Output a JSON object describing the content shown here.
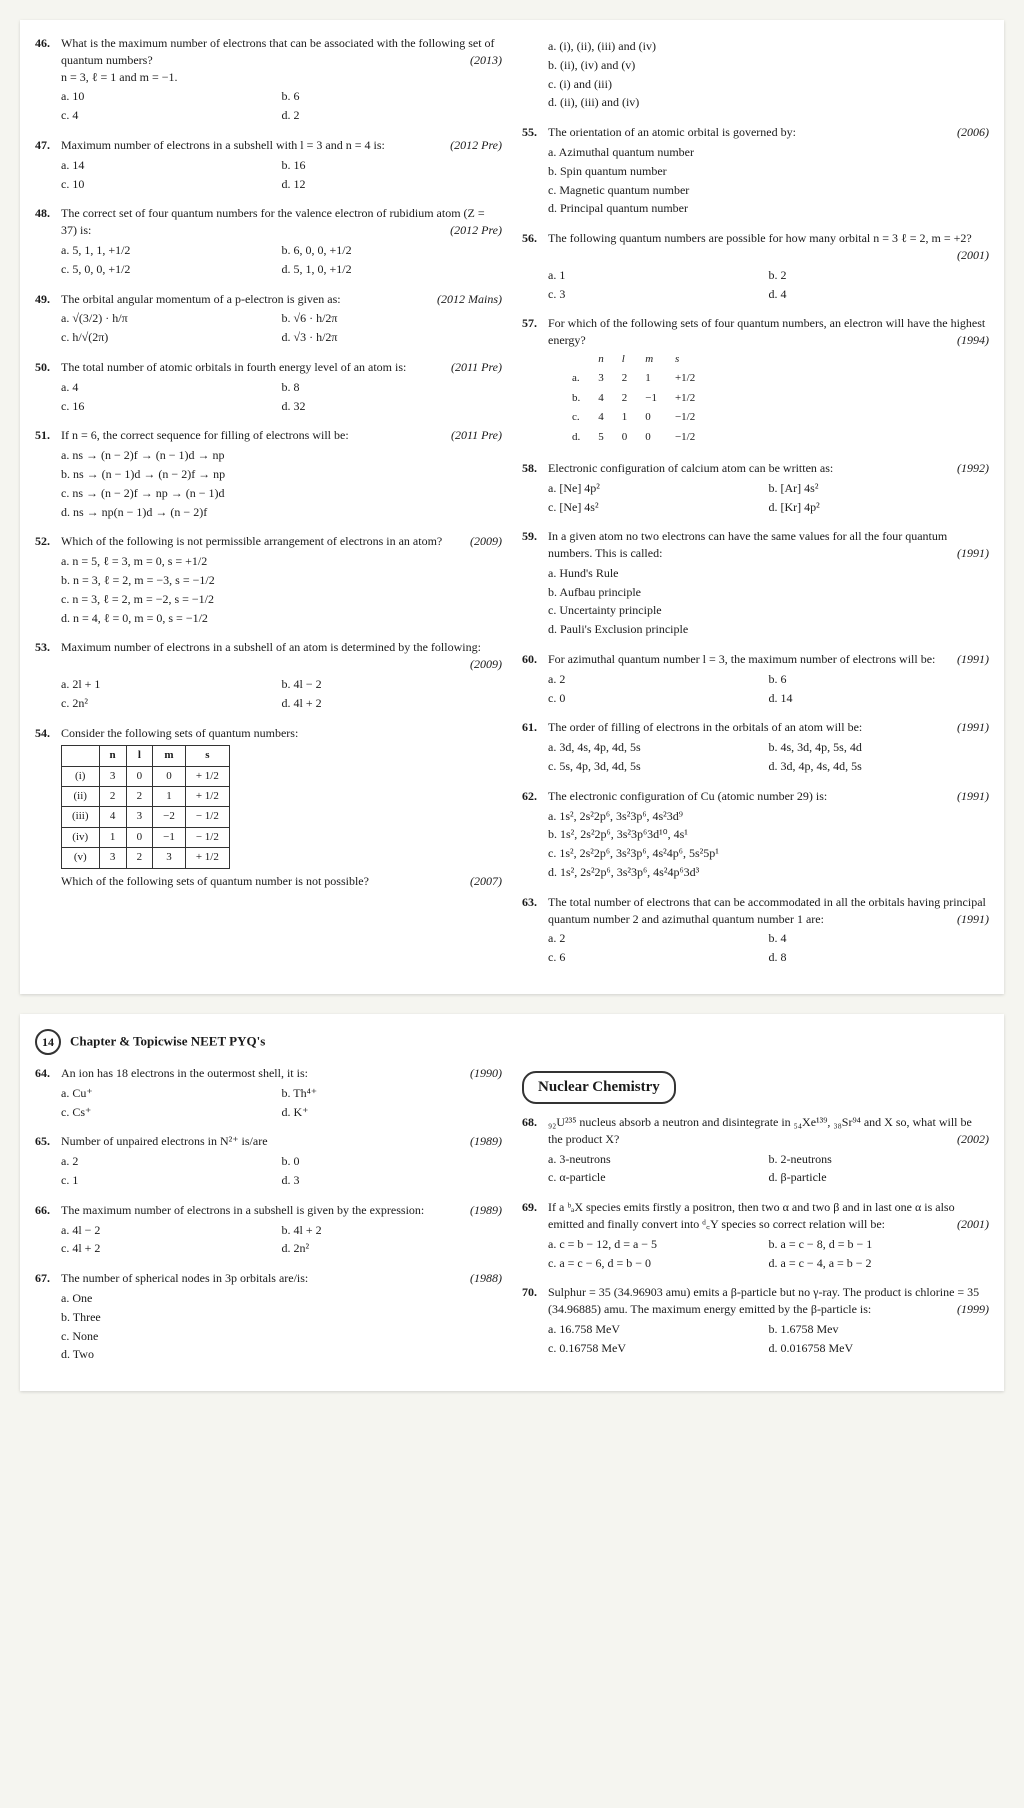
{
  "page1": {
    "left": [
      {
        "num": "46.",
        "text": "What is the maximum number of electrons that can be associated with the following set of quantum numbers?",
        "sub": "n = 3, ℓ = 1 and m = −1.",
        "year": "(2013)",
        "opts": [
          "a. 10",
          "b. 6",
          "c. 4",
          "d. 2"
        ],
        "layout": "row"
      },
      {
        "num": "47.",
        "text": "Maximum number of electrons in a subshell with l = 3 and n = 4 is:",
        "year": "(2012 Pre)",
        "opts": [
          "a. 14",
          "b. 16",
          "c. 10",
          "d. 12"
        ],
        "layout": "row"
      },
      {
        "num": "48.",
        "text": "The correct set of four quantum numbers for the valence electron of rubidium atom (Z = 37) is:",
        "year": "(2012 Pre)",
        "opts": [
          "a. 5, 1, 1, +1/2",
          "b. 6, 0, 0, +1/2",
          "c. 5, 0, 0, +1/2",
          "d. 5, 1, 0, +1/2"
        ],
        "layout": "row"
      },
      {
        "num": "49.",
        "text": "The orbital angular momentum of a p-electron is given as:",
        "year": "(2012 Mains)",
        "opts": [
          "a. √(3/2) · h/π",
          "b. √6 · h/2π",
          "c. h/√(2π)",
          "d. √3 · h/2π"
        ],
        "layout": "row"
      },
      {
        "num": "50.",
        "text": "The total number of atomic orbitals in fourth energy level of an atom is:",
        "year": "(2011 Pre)",
        "opts": [
          "a. 4",
          "b. 8",
          "c. 16",
          "d. 32"
        ],
        "layout": "row"
      },
      {
        "num": "51.",
        "text": "If n = 6, the correct sequence for filling of electrons will be:",
        "year": "(2011 Pre)",
        "opts": [
          "a. ns → (n − 2)f → (n − 1)d → np",
          "b. ns → (n − 1)d → (n − 2)f → np",
          "c. ns → (n − 2)f → np → (n − 1)d",
          "d. ns → np(n − 1)d → (n − 2)f"
        ],
        "layout": "col"
      },
      {
        "num": "52.",
        "text": "Which of the following is not permissible arrangement of electrons in an atom?",
        "year": "(2009)",
        "opts": [
          "a. n = 5, ℓ = 3, m = 0, s = +1/2",
          "b. n = 3, ℓ = 2, m = −3, s = −1/2",
          "c. n = 3, ℓ = 2, m = −2, s = −1/2",
          "d. n = 4, ℓ = 0, m = 0, s = −1/2"
        ],
        "layout": "col"
      },
      {
        "num": "53.",
        "text": "Maximum number of electrons in a subshell of an atom is determined by the following:",
        "year": "(2009)",
        "opts": [
          "a. 2l + 1",
          "b. 4l − 2",
          "c. 2n²",
          "d. 4l + 2"
        ],
        "layout": "row"
      }
    ],
    "q54": {
      "num": "54.",
      "text": "Consider the following sets of quantum numbers:",
      "headers": [
        "",
        "n",
        "l",
        "m",
        "s"
      ],
      "rows": [
        [
          "(i)",
          "3",
          "0",
          "0",
          "+ 1/2"
        ],
        [
          "(ii)",
          "2",
          "2",
          "1",
          "+ 1/2"
        ],
        [
          "(iii)",
          "4",
          "3",
          "−2",
          "− 1/2"
        ],
        [
          "(iv)",
          "1",
          "0",
          "−1",
          "− 1/2"
        ],
        [
          "(v)",
          "3",
          "2",
          "3",
          "+ 1/2"
        ]
      ],
      "trail": "Which of the following sets of quantum number is not possible?",
      "year": "(2007)"
    },
    "right": [
      {
        "num": "",
        "text": "",
        "opts": [
          "a. (i), (ii), (iii) and (iv)",
          "b. (ii), (iv) and (v)",
          "c. (i) and (iii)",
          "d. (ii), (iii) and (iv)"
        ],
        "layout": "col"
      },
      {
        "num": "55.",
        "text": "The orientation of an atomic orbital is governed by:",
        "year": "(2006)",
        "opts": [
          "a. Azimuthal quantum number",
          "b. Spin quantum number",
          "c. Magnetic quantum number",
          "d. Principal quantum number"
        ],
        "layout": "col"
      },
      {
        "num": "56.",
        "text": "The following quantum numbers are possible for how many orbital n = 3 ℓ = 2, m = +2?",
        "year": "(2001)",
        "opts": [
          "a. 1",
          "b. 2",
          "c. 3",
          "d. 4"
        ],
        "layout": "row"
      }
    ],
    "q57": {
      "num": "57.",
      "text": "For which of the following sets of four quantum numbers, an electron will have the highest energy?",
      "year": "(1994)",
      "headers": [
        "",
        "n",
        "l",
        "m",
        "s"
      ],
      "rows": [
        [
          "a.",
          "3",
          "2",
          "1",
          "+1/2"
        ],
        [
          "b.",
          "4",
          "2",
          "−1",
          "+1/2"
        ],
        [
          "c.",
          "4",
          "1",
          "0",
          "−1/2"
        ],
        [
          "d.",
          "5",
          "0",
          "0",
          "−1/2"
        ]
      ]
    },
    "right2": [
      {
        "num": "58.",
        "text": "Electronic configuration of calcium atom can be written as:",
        "year": "(1992)",
        "opts": [
          "a. [Ne] 4p²",
          "b. [Ar] 4s²",
          "c. [Ne] 4s²",
          "d. [Kr] 4p²"
        ],
        "layout": "row"
      },
      {
        "num": "59.",
        "text": "In a given atom no two electrons can have the same values for all the four quantum numbers. This is called:",
        "year": "(1991)",
        "opts": [
          "a. Hund's Rule",
          "b. Aufbau principle",
          "c. Uncertainty principle",
          "d. Pauli's Exclusion principle"
        ],
        "layout": "col"
      },
      {
        "num": "60.",
        "text": "For azimuthal quantum number l = 3, the maximum number of electrons will be:",
        "year": "(1991)",
        "opts": [
          "a. 2",
          "b. 6",
          "c. 0",
          "d. 14"
        ],
        "layout": "row"
      },
      {
        "num": "61.",
        "text": "The order of filling of electrons in the orbitals of an atom will be:",
        "year": "(1991)",
        "opts": [
          "a. 3d, 4s, 4p, 4d, 5s",
          "b. 4s, 3d, 4p, 5s, 4d",
          "c. 5s, 4p, 3d, 4d, 5s",
          "d. 3d, 4p, 4s, 4d, 5s"
        ],
        "layout": "row"
      },
      {
        "num": "62.",
        "text": "The electronic configuration of Cu (atomic number 29) is:",
        "year": "(1991)",
        "opts": [
          "a. 1s², 2s²2p⁶, 3s²3p⁶, 4s²3d⁹",
          "b. 1s², 2s²2p⁶, 3s²3p⁶3d¹⁰, 4s¹",
          "c. 1s², 2s²2p⁶, 3s²3p⁶, 4s²4p⁶, 5s²5p¹",
          "d. 1s², 2s²2p⁶, 3s²3p⁶, 4s²4p⁶3d³"
        ],
        "layout": "col"
      },
      {
        "num": "63.",
        "text": "The total number of electrons that can be accommodated in all the orbitals having principal quantum number 2 and azimuthal quantum number 1 are:",
        "year": "(1991)",
        "opts": [
          "a. 2",
          "b. 4",
          "c. 6",
          "d. 8"
        ],
        "layout": "row"
      }
    ]
  },
  "page2": {
    "badge": "14",
    "chapter": "Chapter & Topicwise NEET PYQ's",
    "left": [
      {
        "num": "64.",
        "text": "An ion has 18 electrons in the outermost shell, it is:",
        "year": "(1990)",
        "opts": [
          "a. Cu⁺",
          "b. Th⁴⁺",
          "c. Cs⁺",
          "d. K⁺"
        ],
        "layout": "row"
      },
      {
        "num": "65.",
        "text": "Number of unpaired electrons in N²⁺ is/are",
        "year": "(1989)",
        "opts": [
          "a. 2",
          "b. 0",
          "c. 1",
          "d. 3"
        ],
        "layout": "row"
      },
      {
        "num": "66.",
        "text": "The maximum number of electrons in a subshell is given by the expression:",
        "year": "(1989)",
        "opts": [
          "a. 4l − 2",
          "b. 4l + 2",
          "c. 4l + 2",
          "d. 2n²"
        ],
        "layout": "row"
      },
      {
        "num": "67.",
        "text": "The number of spherical nodes in 3p orbitals are/is:",
        "year": "(1988)",
        "opts": [
          "a. One",
          "b. Three",
          "c. None",
          "d. Two"
        ],
        "layout": "col"
      }
    ],
    "section": "Nuclear Chemistry",
    "right": [
      {
        "num": "68.",
        "text": "₉₂U²³⁵ nucleus absorb a neutron and disintegrate in ₅₄Xe¹³⁹, ₃₈Sr⁹⁴ and X so, what will be the product X?",
        "year": "(2002)",
        "opts": [
          "a. 3-neutrons",
          "b. 2-neutrons",
          "c. α-particle",
          "d. β-particle"
        ],
        "layout": "row"
      },
      {
        "num": "69.",
        "text": "If a ᵇₐX species emits firstly a positron, then two α and two β and in last one α is also emitted and finally convert into ᵈ꜀Y species so correct relation will be:",
        "year": "(2001)",
        "opts": [
          "a. c = b − 12, d = a − 5",
          "b. a = c − 8, d = b − 1",
          "c. a = c − 6, d = b − 0",
          "d. a = c − 4, a = b − 2"
        ],
        "layout": "row"
      },
      {
        "num": "70.",
        "text": "Sulphur = 35 (34.96903 amu) emits a β-particle but no γ-ray. The product is chlorine = 35 (34.96885) amu. The maximum energy emitted by the β-particle is:",
        "year": "(1999)",
        "opts": [
          "a. 16.758 MeV",
          "b. 1.6758 Mev",
          "c. 0.16758 MeV",
          "d. 0.016758 MeV"
        ],
        "layout": "row"
      }
    ]
  }
}
